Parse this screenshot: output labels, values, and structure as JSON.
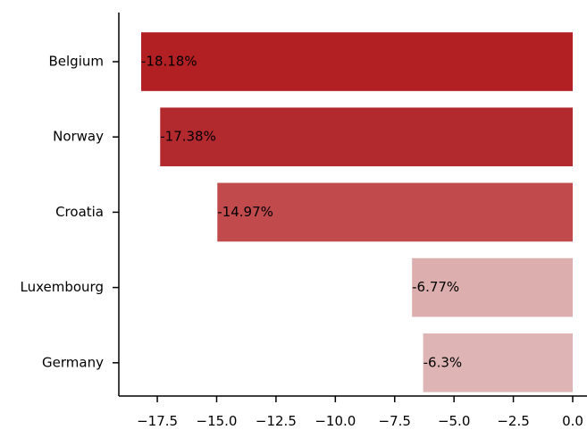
{
  "chart_data": {
    "type": "bar",
    "orientation": "horizontal",
    "categories": [
      "Belgium",
      "Norway",
      "Croatia",
      "Luxembourg",
      "Germany"
    ],
    "values": [
      -18.18,
      -17.38,
      -14.97,
      -6.77,
      -6.3
    ],
    "data_labels": [
      "-18.18%",
      "-17.38%",
      "-14.97%",
      "-6.77%",
      "-6.3%"
    ],
    "bar_colors": [
      "#b22024",
      "#b32a2e",
      "#c04a4c",
      "#ddaeae",
      "#deb4b4"
    ],
    "xlim": [
      -19.0,
      0.0
    ],
    "xticks": [
      -17.5,
      -15.0,
      -12.5,
      -10.0,
      -7.5,
      -5.0,
      -2.5,
      0.0
    ],
    "xtick_labels": [
      "−17.5",
      "−15.0",
      "−12.5",
      "−10.0",
      "−7.5",
      "−5.0",
      "−2.5",
      "0.0"
    ],
    "title": "",
    "xlabel": "",
    "ylabel": "",
    "grid": false,
    "legend": "none"
  }
}
